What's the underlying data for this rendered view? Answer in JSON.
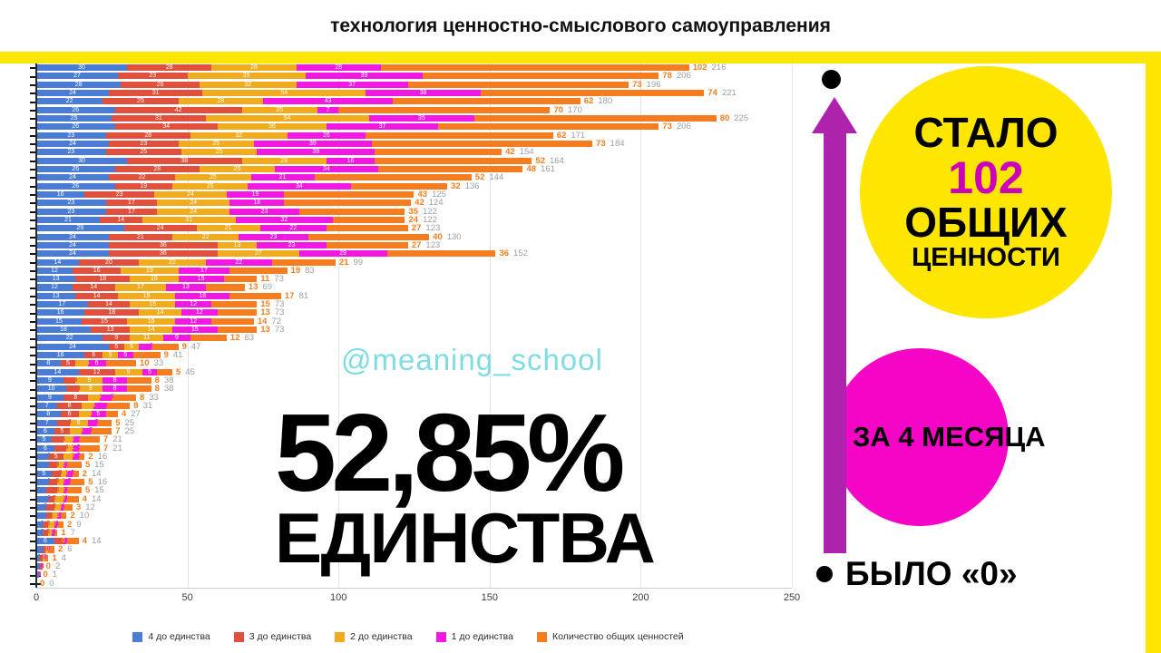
{
  "header": {
    "title": "технология ценностно-смыслового самоуправления"
  },
  "watermark": "@meaning_school",
  "overlay": {
    "percent": "52,85%",
    "caption": "ЕДИНСТВА"
  },
  "right_panel": {
    "became_label": "СТАЛО",
    "became_value": "102",
    "became_line2": "ОБЩИХ",
    "became_line3": "ЦЕННОСТИ",
    "duration": "ЗА 4 МЕСЯЦА",
    "was": "БЫЛО «0»"
  },
  "colors": {
    "accent_yellow": "#FFE600",
    "duration_circle": "#F505C5",
    "arrow": "#AE23AE",
    "became_value_color": "#CC00BB",
    "watermark_color": "#7EDCE2",
    "total_label_color": "#9AA0A6"
  },
  "chart_data": {
    "type": "bar",
    "orientation": "horizontal",
    "stacked": true,
    "legend_position": "bottom",
    "xlim": [
      0,
      250
    ],
    "x_ticks": [
      0,
      50,
      100,
      150,
      200,
      250
    ],
    "series_names": [
      "4 до единства",
      "3 до единства",
      "2 до единства",
      "1 до единства",
      "Количество общих ценностей"
    ],
    "series_colors": [
      "#4A7CD6",
      "#E0503C",
      "#F0AC1C",
      "#F318E1",
      "#F57D20"
    ],
    "rows_note": "Each row: [4-to-unity, 3-to-unity, 2-to-unity, 1-to-unity, shared-values]; bar total = sum; orange value and grey total annotated at bar end",
    "rows": [
      [
        30,
        28,
        28,
        28,
        102
      ],
      [
        27,
        23,
        39,
        39,
        78
      ],
      [
        28,
        26,
        32,
        37,
        73
      ],
      [
        24,
        31,
        54,
        38,
        74
      ],
      [
        22,
        25,
        28,
        43,
        62
      ],
      [
        26,
        42,
        25,
        7,
        70
      ],
      [
        25,
        31,
        54,
        35,
        80
      ],
      [
        26,
        34,
        36,
        37,
        73
      ],
      [
        23,
        28,
        32,
        26,
        62
      ],
      [
        24,
        23,
        25,
        39,
        73
      ],
      [
        23,
        25,
        25,
        39,
        42
      ],
      [
        30,
        38,
        28,
        16,
        52
      ],
      [
        26,
        28,
        25,
        34,
        48
      ],
      [
        24,
        22,
        25,
        21,
        52
      ],
      [
        26,
        19,
        25,
        34,
        32
      ],
      [
        16,
        23,
        24,
        19,
        43
      ],
      [
        23,
        17,
        24,
        18,
        42
      ],
      [
        23,
        17,
        24,
        23,
        35
      ],
      [
        21,
        14,
        31,
        32,
        24
      ],
      [
        29,
        24,
        21,
        22,
        27
      ],
      [
        24,
        21,
        22,
        23,
        40
      ],
      [
        24,
        36,
        13,
        23,
        27
      ],
      [
        24,
        36,
        27,
        29,
        36
      ],
      [
        14,
        20,
        22,
        22,
        21
      ],
      [
        12,
        16,
        19,
        17,
        19
      ],
      [
        13,
        18,
        16,
        15,
        11
      ],
      [
        12,
        14,
        17,
        13,
        13
      ],
      [
        13,
        14,
        19,
        18,
        17
      ],
      [
        17,
        14,
        15,
        12,
        15
      ],
      [
        16,
        18,
        14,
        12,
        13
      ],
      [
        15,
        15,
        16,
        12,
        14
      ],
      [
        18,
        13,
        14,
        15,
        13
      ],
      [
        22,
        9,
        11,
        9,
        12
      ],
      [
        24,
        5,
        5,
        4,
        9
      ],
      [
        16,
        6,
        5,
        5,
        9
      ],
      [
        8,
        5,
        4,
        6,
        10
      ],
      [
        14,
        12,
        9,
        5,
        5
      ],
      [
        9,
        4,
        9,
        8,
        8
      ],
      [
        10,
        4,
        8,
        8,
        8
      ],
      [
        9,
        8,
        4,
        4,
        8
      ],
      [
        7,
        8,
        4,
        4,
        8
      ],
      [
        8,
        6,
        4,
        5,
        4
      ],
      [
        7,
        4,
        6,
        3,
        5
      ],
      [
        6,
        5,
        4,
        3,
        7
      ],
      [
        5,
        4,
        3,
        2,
        7
      ],
      [
        6,
        4,
        2,
        2,
        7
      ],
      [
        4,
        5,
        3,
        2,
        2
      ],
      [
        4,
        3,
        2,
        1,
        5
      ],
      [
        5,
        3,
        2,
        2,
        2
      ],
      [
        4,
        3,
        2,
        2,
        5
      ],
      [
        3,
        4,
        2,
        1,
        5
      ],
      [
        4,
        2,
        3,
        1,
        4
      ],
      [
        3,
        3,
        2,
        1,
        3
      ],
      [
        3,
        2,
        2,
        1,
        2
      ],
      [
        2,
        2,
        2,
        1,
        2
      ],
      [
        2,
        2,
        1,
        1,
        1
      ],
      [
        6,
        3,
        0,
        1,
        4
      ],
      [
        2,
        1,
        1,
        0,
        2
      ],
      [
        1,
        1,
        1,
        0,
        1
      ],
      [
        1,
        1,
        0,
        0,
        0
      ],
      [
        1,
        0,
        0,
        0,
        0
      ],
      [
        0,
        0,
        0,
        0,
        0
      ]
    ]
  }
}
